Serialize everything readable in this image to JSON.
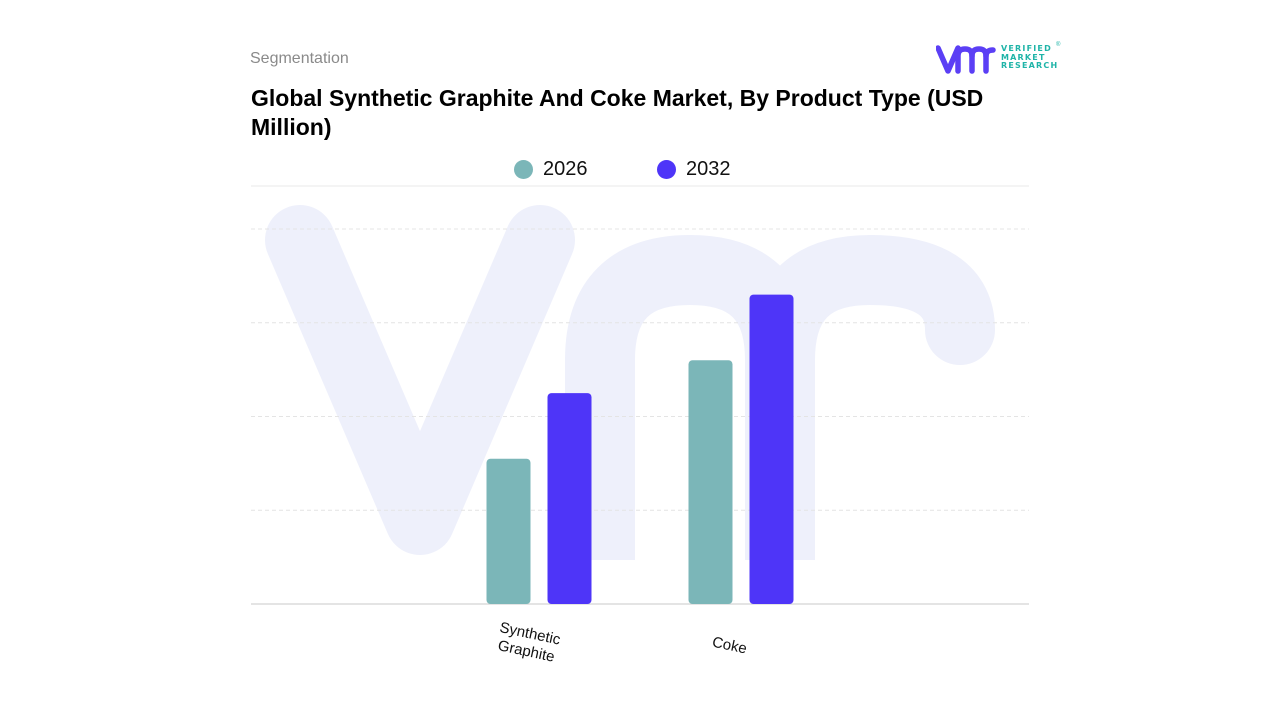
{
  "header": {
    "section_label": "Segmentation",
    "title": "Global Synthetic Graphite And Coke Market, By Product Type (USD Million)"
  },
  "brand": {
    "logo_lines": [
      "VERIFIED",
      "MARKET",
      "RESEARCH"
    ],
    "registered_mark": "®",
    "logo_colors": {
      "mark": "#5b3ff5",
      "text": "#1fb4a8"
    }
  },
  "legend": {
    "items": [
      {
        "label": "2026",
        "color": "#7bb6b8"
      },
      {
        "label": "2032",
        "color": "#4e35f8"
      }
    ],
    "placement": "top-center"
  },
  "chart_data": {
    "type": "bar",
    "title": "Global Synthetic Graphite And Coke Market, By Product Type (USD Million)",
    "xlabel": "",
    "ylabel": "",
    "categories": [
      "Synthetic Graphite",
      "Coke"
    ],
    "category_label_lines": [
      [
        "Synthetic",
        "Graphite"
      ],
      [
        "Coke"
      ]
    ],
    "series": [
      {
        "name": "2026",
        "values": [
          31,
          52
        ],
        "color": "#7bb6b8"
      },
      {
        "name": "2032",
        "values": [
          45,
          66
        ],
        "color": "#4e35f8"
      }
    ],
    "ylim": [
      0,
      90
    ],
    "y_gridlines": [
      20,
      40,
      60,
      80
    ],
    "grid": true,
    "y_tick_labels_shown": false
  }
}
